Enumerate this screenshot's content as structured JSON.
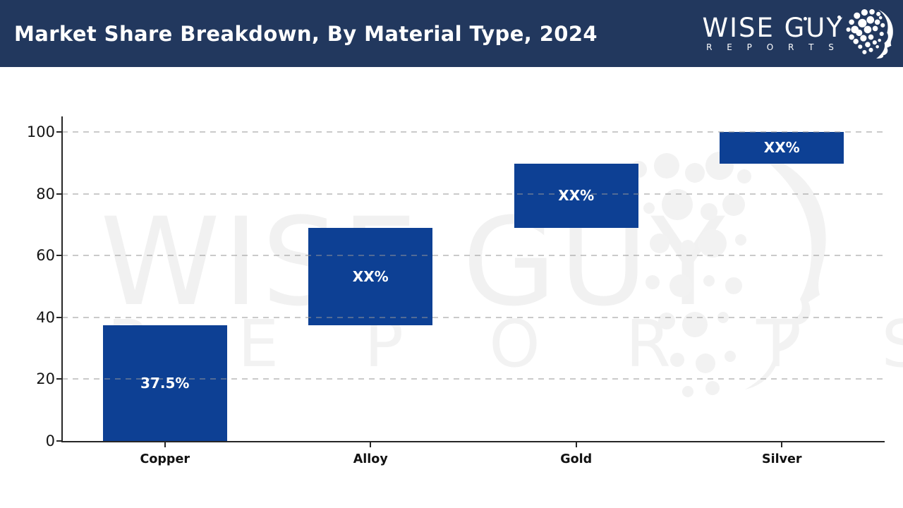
{
  "header": {
    "title": "Market Share Breakdown, By Material Type, 2024",
    "logo": {
      "line1": "WISE GUY",
      "line2": "R E P O R T S"
    }
  },
  "watermark": {
    "line1": "WISE GUY",
    "line2": "R E P O R T S"
  },
  "colors": {
    "header_bg": "#22385e",
    "bar": "#0d4094",
    "bar_label": "#ffffff",
    "axis": "#262626",
    "gridline": "#d4d4d4",
    "watermark": "#f1f1f1"
  },
  "chart_data": {
    "type": "bar",
    "subtype": "waterfall",
    "title": "Market Share Breakdown, By Material Type, 2024",
    "categories": [
      "Copper",
      "Alloy",
      "Gold",
      "Silver"
    ],
    "segments": [
      {
        "category": "Copper",
        "start": 0,
        "end": 37.5,
        "label": "37.5%"
      },
      {
        "category": "Alloy",
        "start": 37.5,
        "end": 69,
        "label": "XX%"
      },
      {
        "category": "Gold",
        "start": 69,
        "end": 89.8,
        "label": "XX%"
      },
      {
        "category": "Silver",
        "start": 89.8,
        "end": 100,
        "label": "XX%"
      }
    ],
    "y_ticks": [
      0,
      20,
      40,
      60,
      80,
      100
    ],
    "ylim": [
      0,
      100
    ],
    "xlabel": "",
    "ylabel": "",
    "grid": "dashed-horizontal",
    "legend": "none"
  }
}
